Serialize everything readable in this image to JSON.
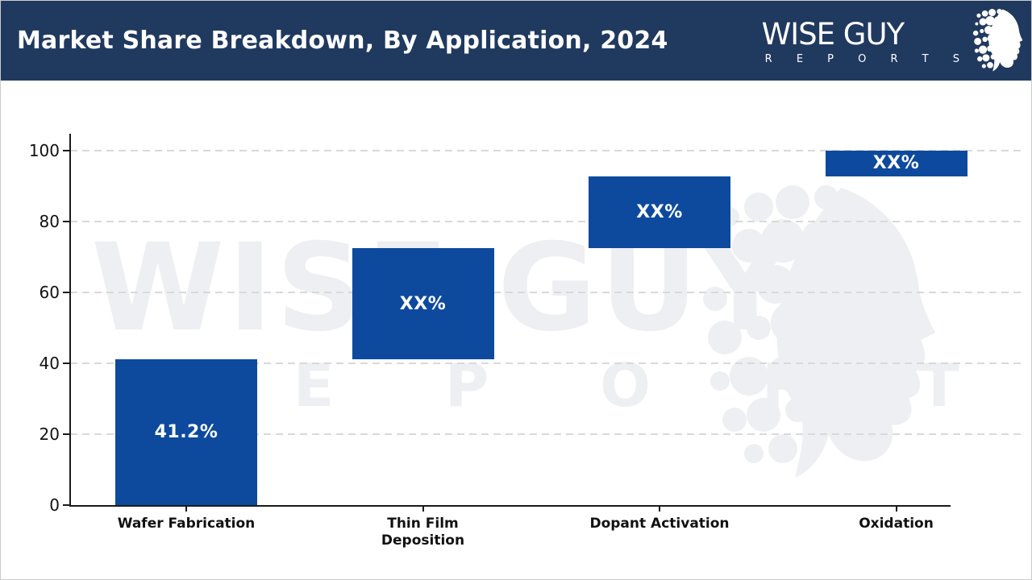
{
  "header": {
    "title": "Market Share Breakdown, By Application, 2024",
    "bg_color": "#20395f",
    "logo": {
      "brand": "WISE GUY",
      "sub": "R E P O R T S"
    }
  },
  "watermark": {
    "brand": "WISE GUY",
    "sub": "R E P O R T S"
  },
  "chart_data": {
    "type": "bar",
    "subtype": "waterfall-cumulative",
    "title": "Market Share Breakdown, By Application, 2024",
    "categories": [
      "Wafer Fabrication",
      "Thin Film Deposition",
      "Dopant Activation",
      "Oxidation"
    ],
    "categories_display": [
      "Wafer Fabrication",
      "Thin Film\nDeposition",
      "Dopant Activation",
      "Oxidation"
    ],
    "series": [
      {
        "name": "Market Share (%)",
        "segments": [
          {
            "category": "Wafer Fabrication",
            "start": 0,
            "end": 41.2,
            "label": "41.2%"
          },
          {
            "category": "Thin Film Deposition",
            "start": 41.2,
            "end": 72.4,
            "label": "XX%"
          },
          {
            "category": "Dopant Activation",
            "start": 72.4,
            "end": 92.8,
            "label": "XX%"
          },
          {
            "category": "Oxidation",
            "start": 92.8,
            "end": 100,
            "label": "XX%"
          }
        ]
      }
    ],
    "bar_labels": [
      "41.2%",
      "XX%",
      "XX%",
      "XX%"
    ],
    "xlabel": "",
    "ylabel": "",
    "ylim": [
      0,
      100
    ],
    "yticks": [
      0,
      20,
      40,
      60,
      80,
      100
    ],
    "grid": "horizontal-dashed",
    "legend": "none",
    "bar_color": "#0d4a9e",
    "bar_label_color": "#ffffff"
  },
  "colors": {
    "header_bg": "#20395f",
    "bar": "#0d4a9e",
    "grid": "#d9d9d9",
    "axis": "#1a1a1a",
    "watermark": "#edeff2",
    "frame_border": "#cccccc"
  }
}
